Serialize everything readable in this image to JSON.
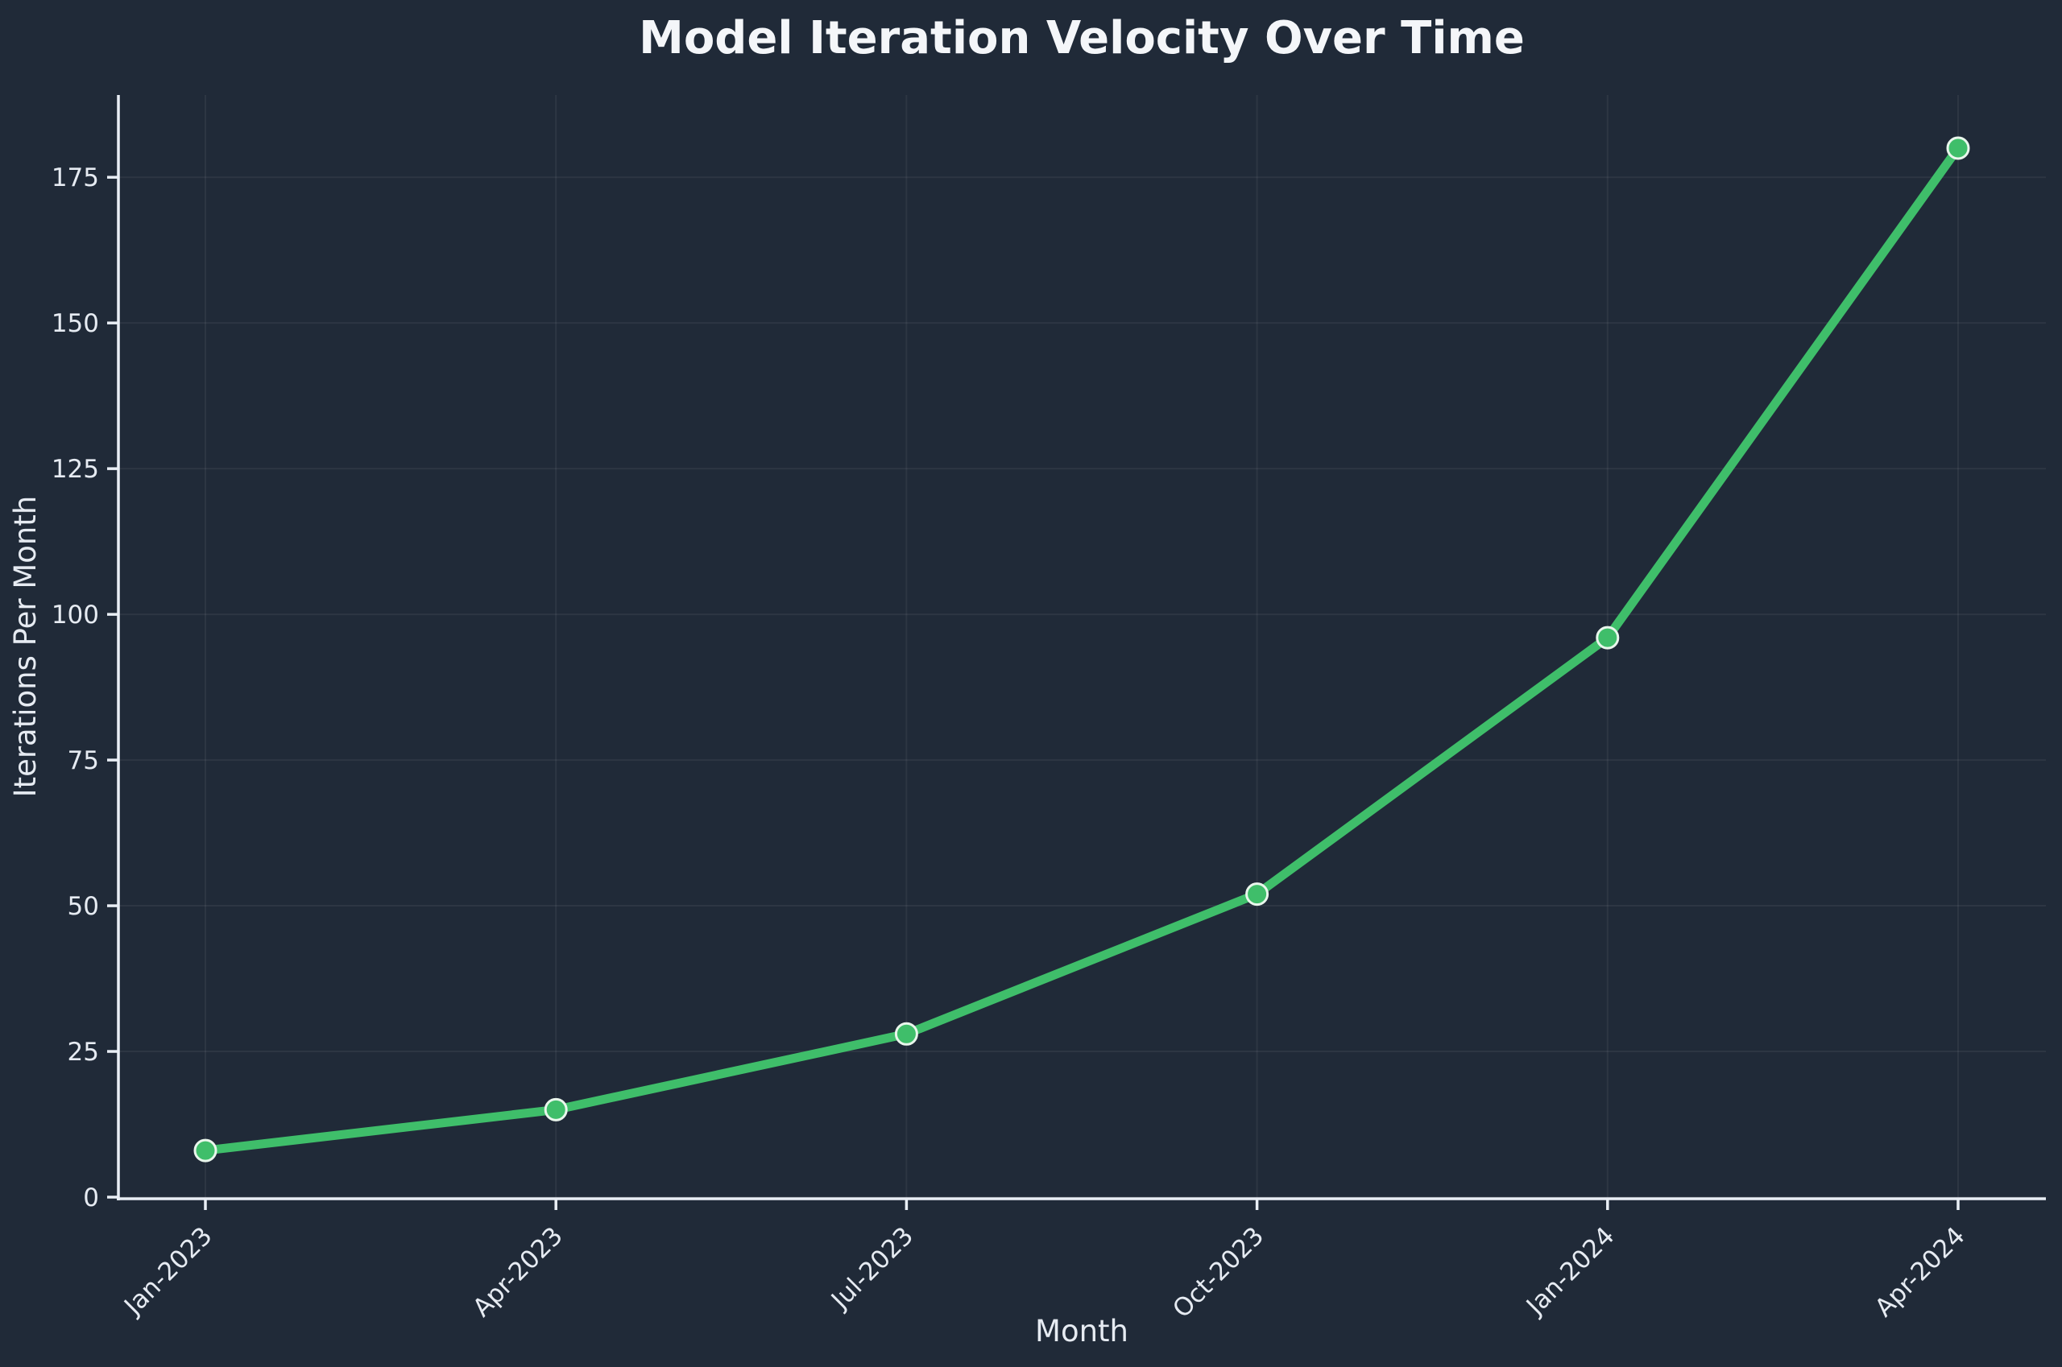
{
  "page": {
    "background_color": "#202a38"
  },
  "chart_data": {
    "type": "line",
    "title": "Model Iteration Velocity Over Time",
    "xlabel": "Month",
    "ylabel": "Iterations Per Month",
    "categories": [
      "Jan-2023",
      "Apr-2023",
      "Jul-2023",
      "Oct-2023",
      "Jan-2024",
      "Apr-2024"
    ],
    "series": [
      {
        "name": "Iterations Per Month",
        "values": [
          8,
          15,
          28,
          52,
          96,
          180
        ]
      }
    ],
    "yticks": [
      0,
      25,
      50,
      75,
      100,
      125,
      150,
      175
    ],
    "ylim": [
      -1,
      189
    ],
    "grid": true,
    "legend_position": "none",
    "x_tick_rotation_deg": 45,
    "colors": {
      "line": "#3fbe6a",
      "marker_fill": "#3fbe6a",
      "marker_edge": "#e9f6ec",
      "axis": "#e9eef5",
      "tick_label": "#e6ebf2",
      "title": "#f4f6f9",
      "grid": "rgba(255,255,255,0.06)"
    }
  }
}
